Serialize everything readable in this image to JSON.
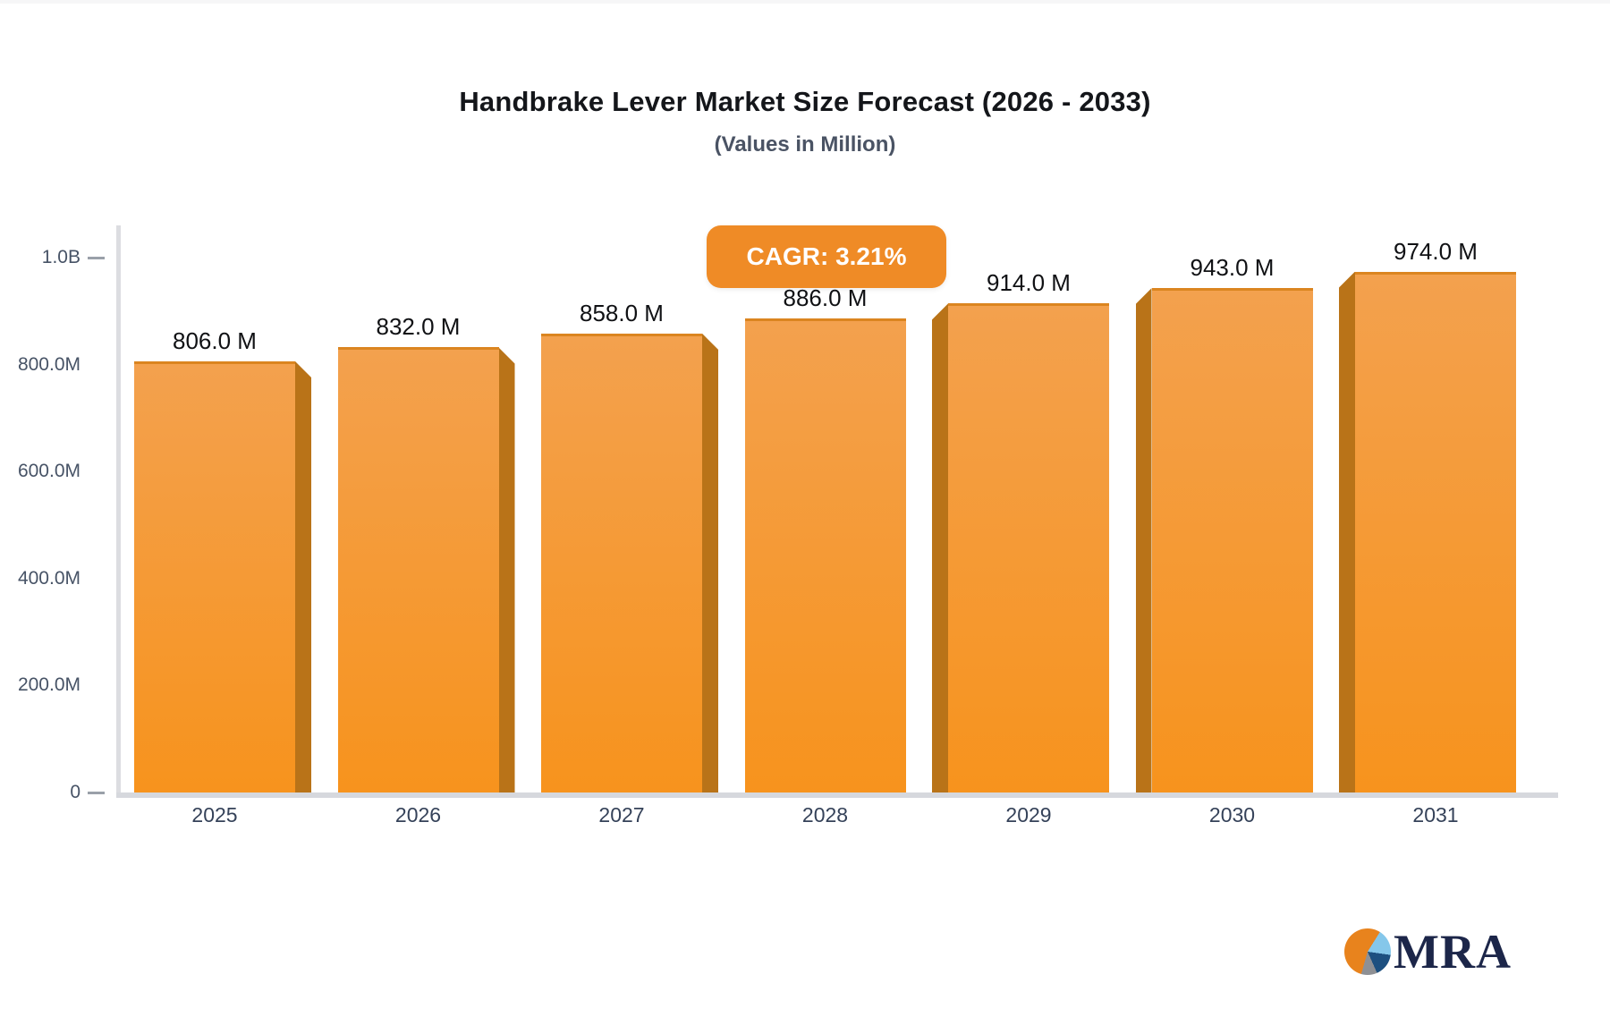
{
  "chart_data": {
    "type": "bar",
    "title": "Handbrake Lever Market Size Forecast (2026 - 2033)",
    "subtitle": "(Values in Million)",
    "cagr_label": "CAGR: 3.21%",
    "categories": [
      "2025",
      "2026",
      "2027",
      "2028",
      "2029",
      "2030",
      "2031"
    ],
    "values": [
      806,
      832,
      858,
      886,
      914,
      943,
      974
    ],
    "bar_labels": [
      "806.0 M",
      "832.0 M",
      "858.0 M",
      "886.0 M",
      "914.0 M",
      "943.0 M",
      "974.0 M"
    ],
    "xlabel": "",
    "ylabel": "",
    "ylim": [
      0,
      1000
    ],
    "y_axis": {
      "unit": "M",
      "ticks": [
        {
          "label": "1.0B",
          "value": 1000,
          "dash": true
        },
        {
          "label": "800.0M",
          "value": 800,
          "dash": false
        },
        {
          "label": "600.0M",
          "value": 600,
          "dash": false
        },
        {
          "label": "400.0M",
          "value": 400,
          "dash": false
        },
        {
          "label": "200.0M",
          "value": 200,
          "dash": false
        },
        {
          "label": "0",
          "value": 0,
          "dash": true
        }
      ]
    },
    "grid": false,
    "legend": false,
    "bar_style": "pseudo-3d"
  },
  "logo": {
    "text": "MRA",
    "icon": "pie-chart-icon"
  },
  "colors": {
    "bar_top": "#f3a14e",
    "bar_bottom": "#f7931d",
    "bar_side": "#b97318",
    "badge_bg": "#ef8b26",
    "axis_line": "#dcdde1",
    "baseline": "#d6d8dd",
    "title_text": "#14161a",
    "subtitle_text": "#4a5364",
    "tick_text": "#475366",
    "logo_navy": "#1c2649"
  }
}
